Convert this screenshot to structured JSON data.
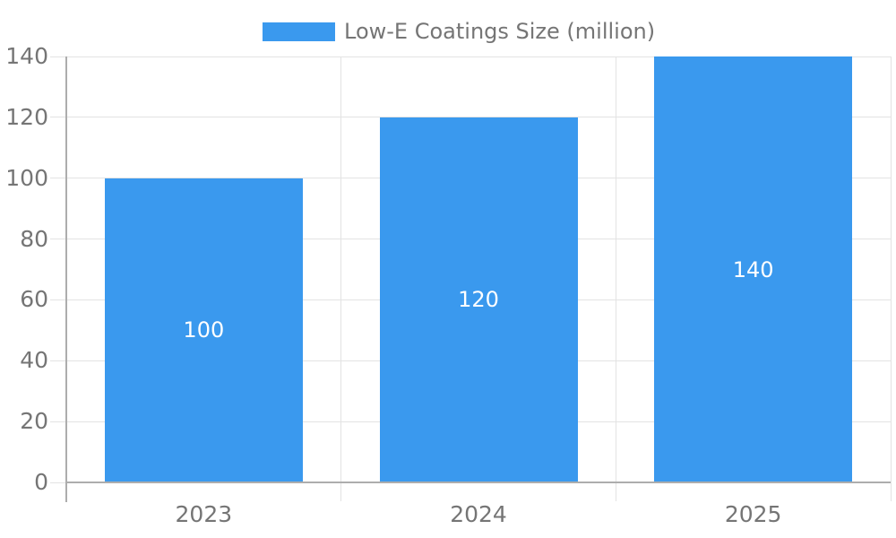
{
  "chart_data": {
    "type": "bar",
    "title": "Low-E Coatings Size (million)",
    "legend_entries": [
      "Low-E Coatings Size (million)"
    ],
    "legend_position": "top",
    "categories": [
      "2023",
      "2024",
      "2025"
    ],
    "values": [
      100,
      120,
      140
    ],
    "value_labels_inside_bars": true,
    "xlabel": "",
    "ylabel": "",
    "ylim": [
      0,
      140
    ],
    "y_ticks": [
      0,
      20,
      40,
      60,
      80,
      100,
      120,
      140
    ],
    "grid": true,
    "colors": {
      "bar": "#3A99EE",
      "value_label": "#FFFFFF",
      "axis_text": "#757575",
      "gridline": "#E3E3E3",
      "axis_line": "#ADADAD",
      "background": "#FFFFFF"
    }
  }
}
